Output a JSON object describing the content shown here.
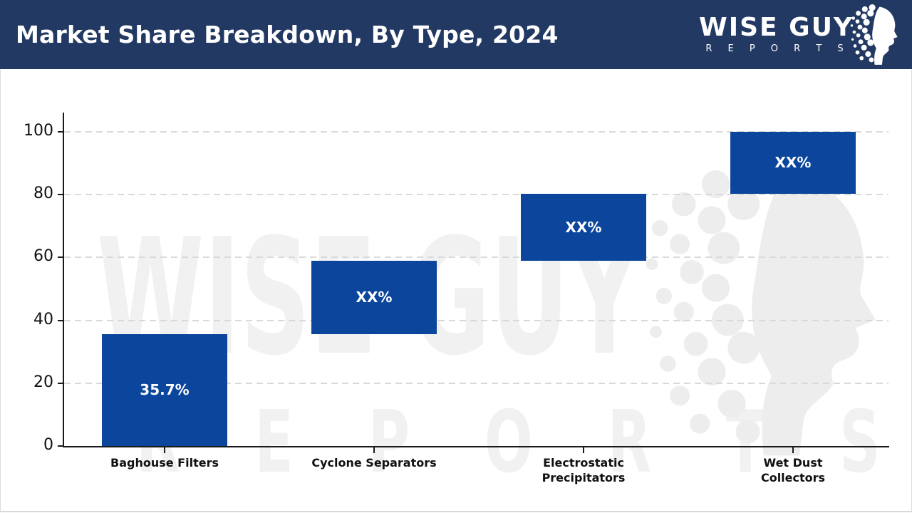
{
  "header": {
    "title": "Market Share Breakdown, By Type, 2024",
    "logo": {
      "brand": "WISE GUY",
      "sub": "R E P O R T S"
    }
  },
  "watermark": {
    "line1": "WISE GUY",
    "line2": "R E P O R T S"
  },
  "colors": {
    "header_bg": "#223963",
    "bar": "#0b469c",
    "bar_label": "#ffffff",
    "grid": "#d9d9d9",
    "axis": "#1a1a1a",
    "tick_label": "#111111",
    "watermark": "#f1f1f1"
  },
  "chart_data": {
    "type": "bar",
    "subtype": "waterfall",
    "title": "Market Share Breakdown, By Type, 2024",
    "categories": [
      "Baghouse Filters",
      "Cyclone Separators",
      "Electrostatic\nPrecipitators",
      "Wet Dust\nCollectors"
    ],
    "segments": [
      {
        "category": "Baghouse Filters",
        "start": 0,
        "end": 35.7,
        "label": "35.7%"
      },
      {
        "category": "Cyclone Separators",
        "start": 35.7,
        "end": 59.0,
        "label": "XX%"
      },
      {
        "category": "Electrostatic Precipitators",
        "start": 59.0,
        "end": 80.3,
        "label": "XX%"
      },
      {
        "category": "Wet Dust Collectors",
        "start": 80.3,
        "end": 100.0,
        "label": "XX%"
      }
    ],
    "yticks": [
      0,
      20,
      40,
      60,
      80,
      100
    ],
    "ylim": [
      0,
      106
    ],
    "xlabel": "",
    "ylabel": "",
    "grid": "dashed-horizontal",
    "legend": null
  }
}
